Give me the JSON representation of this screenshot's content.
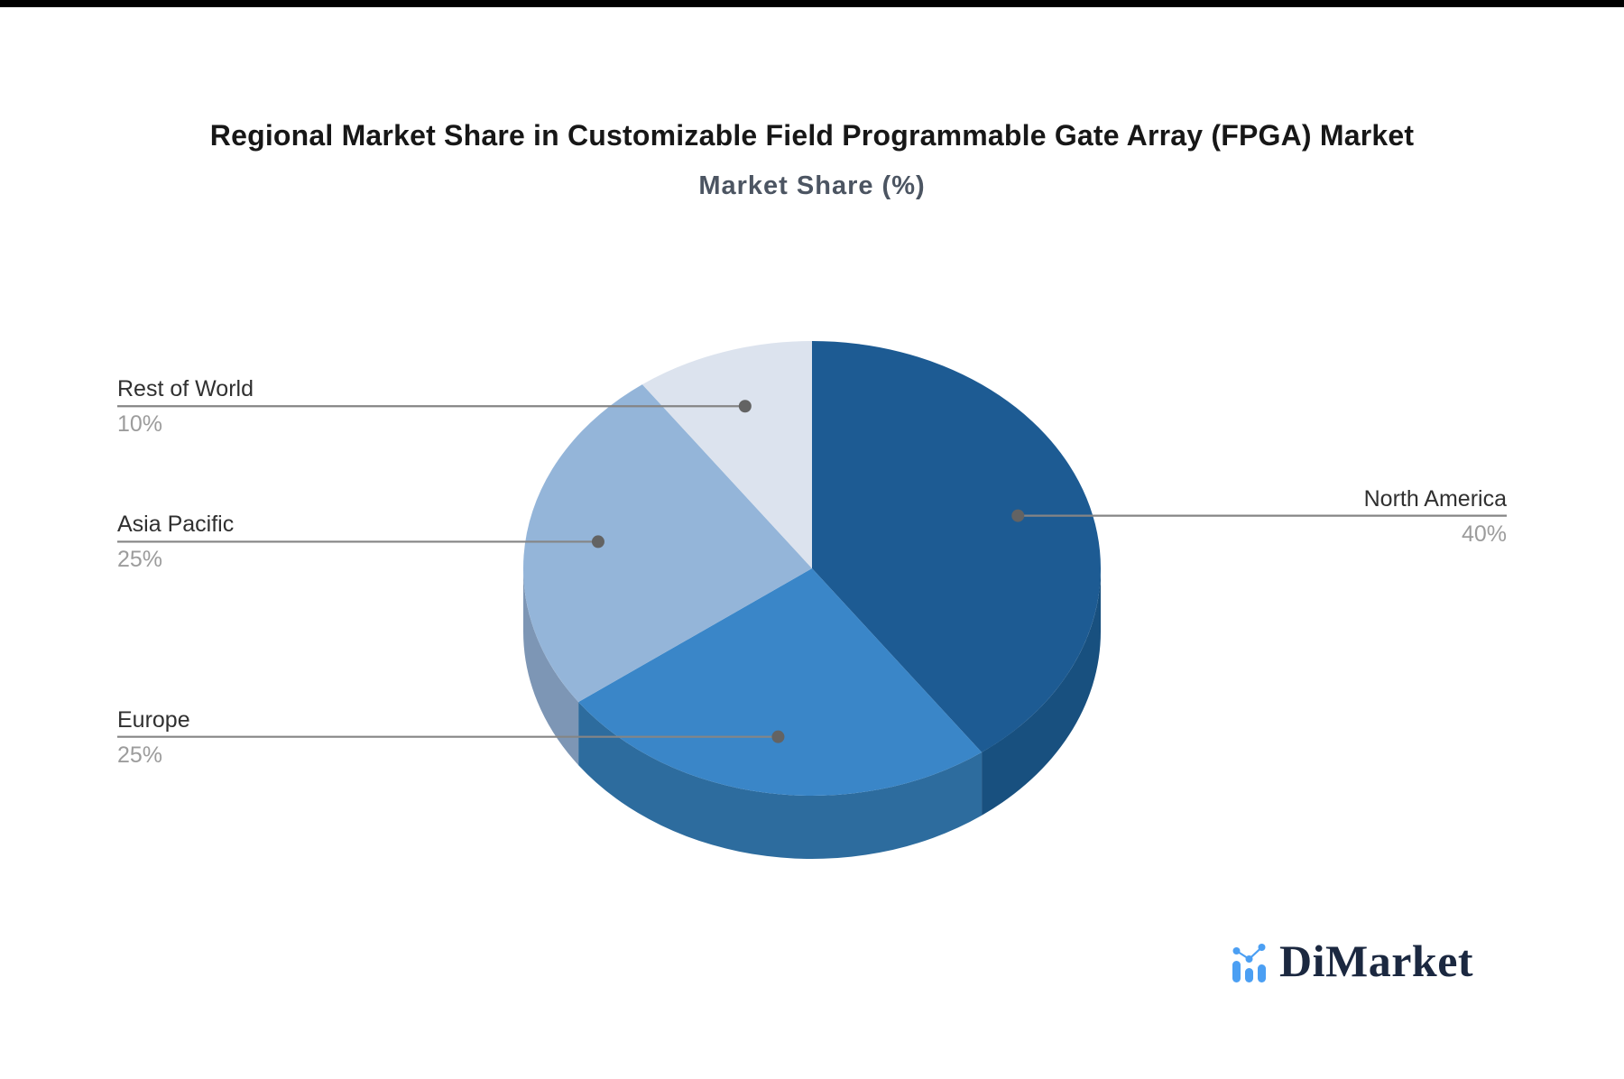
{
  "title": "Regional Market Share in Customizable Field Programmable Gate Array (FPGA) Market",
  "subtitle": "Market Share (%)",
  "brand": {
    "name": "DiMarket",
    "icon": "bar-line-chart-icon",
    "icon_color": "#4b9ff3",
    "text_color": "#1b2840"
  },
  "chart_data": {
    "type": "pie",
    "title": "Regional Market Share in Customizable Field Programmable Gate Array (FPGA) Market",
    "subtitle": "Market Share (%)",
    "unit": "%",
    "effect": "3d",
    "start_angle_deg": 0,
    "direction": "clockwise",
    "legend_position": "none",
    "label_style": "callout-lines",
    "slices": [
      {
        "name": "North America",
        "value": 40,
        "label": "40%",
        "color": "#1d5b93",
        "side_color": "#18507f",
        "label_side": "right"
      },
      {
        "name": "Europe",
        "value": 25,
        "label": "25%",
        "color": "#3a86c8",
        "side_color": "#2d6c9e",
        "label_side": "left"
      },
      {
        "name": "Asia Pacific",
        "value": 25,
        "label": "25%",
        "color": "#94b5d9",
        "side_color": "#7d96b5",
        "label_side": "left"
      },
      {
        "name": "Rest of World",
        "value": 10,
        "label": "10%",
        "color": "#dce3ee",
        "side_color": "#b9c4d6",
        "label_side": "left"
      }
    ],
    "connector_color": "#858585",
    "connector_dot_color": "#636363",
    "label_text_color": "#303030",
    "value_text_color": "#9c9c9c"
  }
}
